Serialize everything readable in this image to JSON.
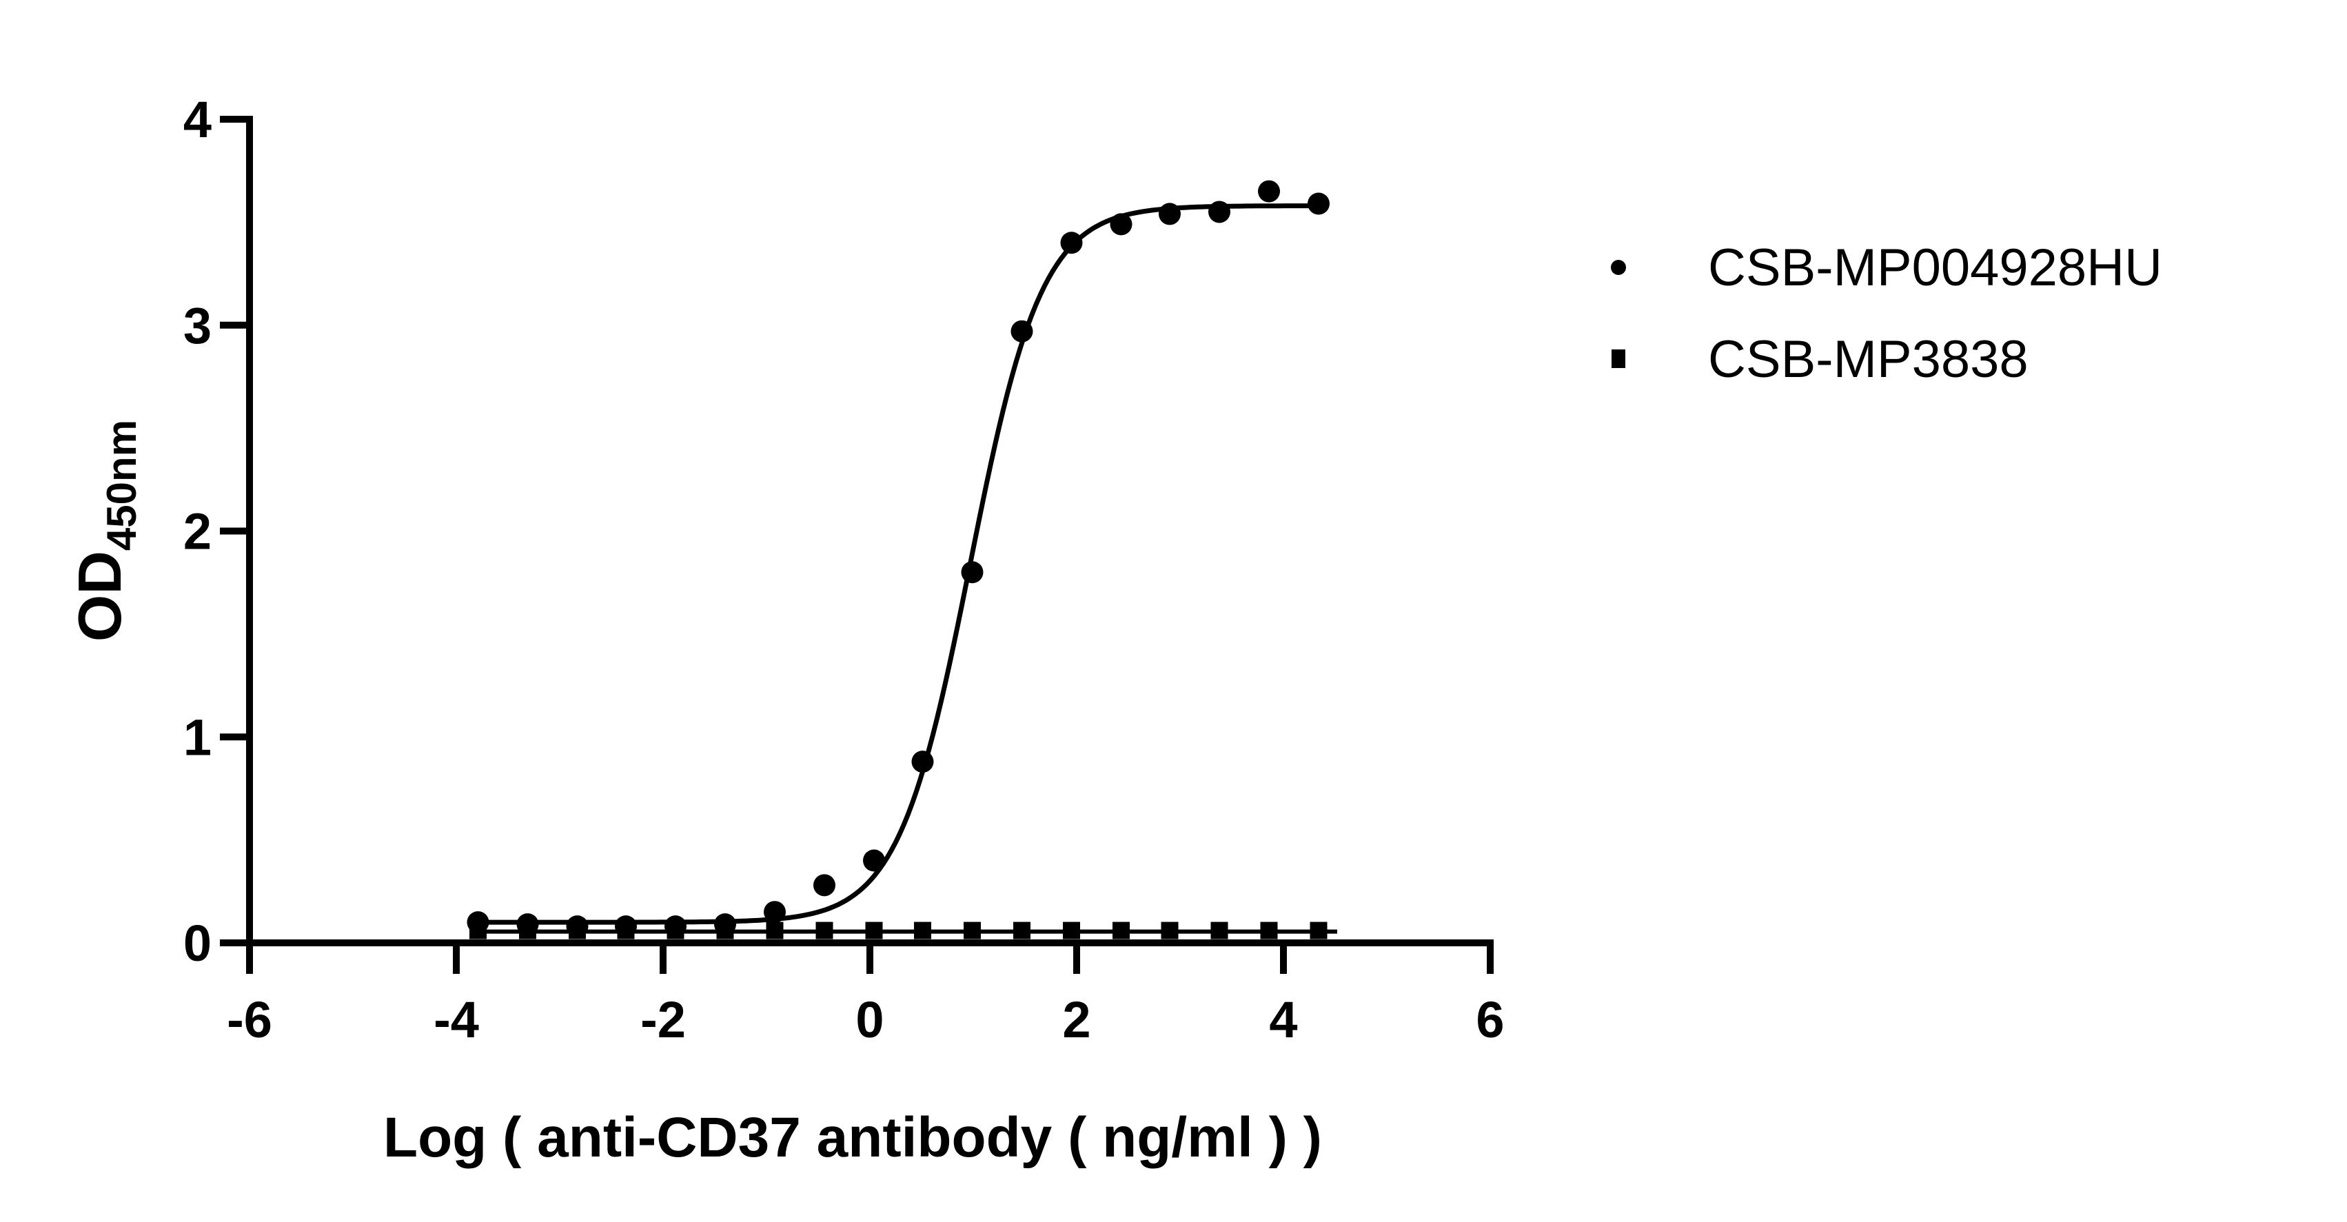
{
  "figure": {
    "background": "#ffffff",
    "ink_color": "#000000"
  },
  "chart_data": {
    "type": "scatter",
    "title": "",
    "xlabel": "Log ( anti-CD37 antibody ( ng/ml )   )",
    "ylabel": "OD",
    "ylabel_subscript": "450nm",
    "xlim": [
      -6,
      6
    ],
    "ylim": [
      0,
      4
    ],
    "x_ticks": [
      -6,
      -4,
      -2,
      0,
      2,
      4,
      6
    ],
    "y_ticks": [
      0,
      1,
      2,
      3,
      4
    ],
    "grid": "off",
    "legend_position": "right",
    "x": [
      -3.79,
      -3.31,
      -2.83,
      -2.36,
      -1.88,
      -1.4,
      -0.92,
      -0.44,
      0.04,
      0.51,
      0.99,
      1.47,
      1.95,
      2.43,
      2.9,
      3.38,
      3.86,
      4.34
    ],
    "series": [
      {
        "name": "CSB-MP004928HU",
        "marker": "circle",
        "values": [
          0.1,
          0.09,
          0.08,
          0.08,
          0.08,
          0.09,
          0.15,
          0.28,
          0.4,
          0.88,
          1.8,
          2.97,
          3.4,
          3.49,
          3.54,
          3.55,
          3.65,
          3.59
        ],
        "fit": {
          "type": "4pl-sigmoid",
          "bottom": 0.1,
          "top": 3.58,
          "logEC50": 0.97,
          "hill": 1.25
        }
      },
      {
        "name": "CSB-MP3838",
        "marker": "square",
        "values": [
          0.06,
          0.06,
          0.06,
          0.06,
          0.06,
          0.06,
          0.06,
          0.06,
          0.06,
          0.06,
          0.06,
          0.06,
          0.06,
          0.06,
          0.06,
          0.06,
          0.06,
          0.06
        ],
        "fit": {
          "type": "flat",
          "value": 0.055
        }
      }
    ]
  }
}
